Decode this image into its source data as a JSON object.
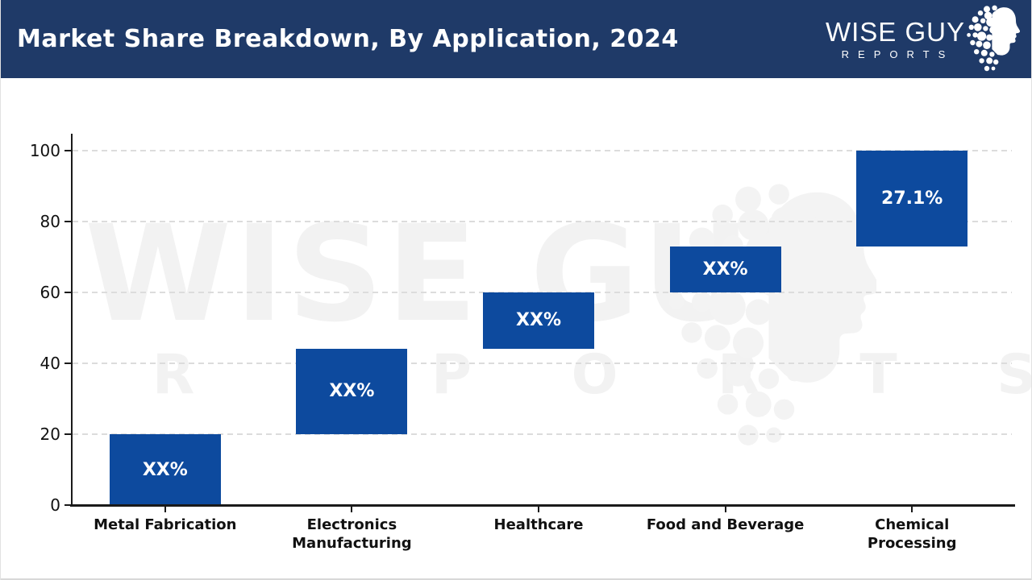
{
  "header": {
    "title": "Market Share Breakdown, By Application, 2024",
    "logo": {
      "line1": "WISE GUY",
      "line2": "REPORTS"
    }
  },
  "watermark": {
    "line1": "WISE GUY",
    "line2": "R E P O R T S"
  },
  "theme": {
    "header_bg": "#1f3a68",
    "bar_color": "#0d4a9e",
    "grid_color": "#dcdcdc",
    "axis_color": "#1a1a1a"
  },
  "chart_data": {
    "type": "bar",
    "subtype": "waterfall",
    "title": "Market Share Breakdown, By Application, 2024",
    "xlabel": "",
    "ylabel": "",
    "ylim": [
      0,
      100
    ],
    "yticks": [
      0,
      20,
      40,
      60,
      80,
      100
    ],
    "grid": "horizontal-dashed",
    "legend": "none",
    "bar_color": "#0d4a9e",
    "categories": [
      "Metal Fabrication",
      "Electronics Manufacturing",
      "Healthcare",
      "Food and Beverage",
      "Chemical Processing"
    ],
    "categories_display": [
      [
        "Metal Fabrication"
      ],
      [
        "Electronics",
        "Manufacturing"
      ],
      [
        "Healthcare"
      ],
      [
        "Food and Beverage"
      ],
      [
        "Chemical",
        "Processing"
      ]
    ],
    "segments": [
      {
        "category": "Metal Fabrication",
        "start": 0,
        "end": 20,
        "value_label": "XX%"
      },
      {
        "category": "Electronics Manufacturing",
        "start": 20,
        "end": 44.1,
        "value_label": "XX%"
      },
      {
        "category": "Healthcare",
        "start": 44.1,
        "end": 60,
        "value_label": "XX%"
      },
      {
        "category": "Food and Beverage",
        "start": 60,
        "end": 72.9,
        "value_label": "XX%"
      },
      {
        "category": "Chemical Processing",
        "start": 72.9,
        "end": 100,
        "value_label": "27.1%"
      }
    ]
  }
}
